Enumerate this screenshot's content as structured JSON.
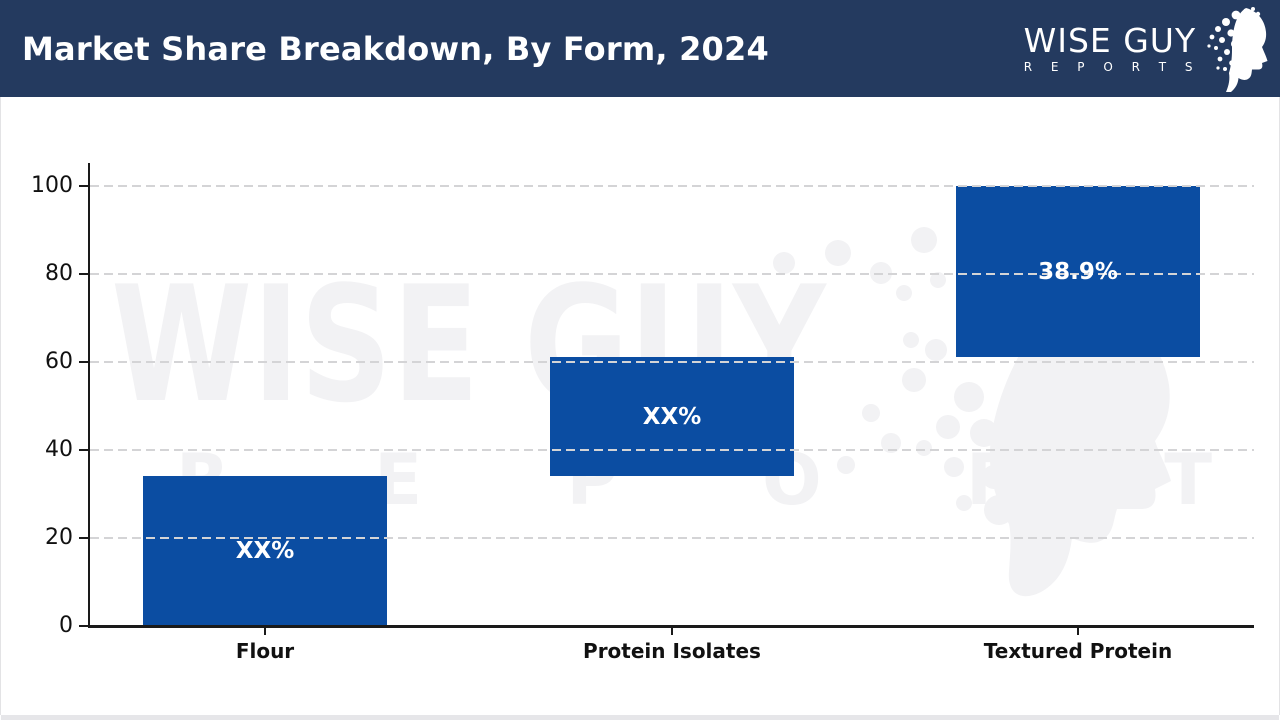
{
  "header": {
    "title": "Market Share Breakdown, By Form, 2024",
    "bg_color": "#243A5F",
    "logo": {
      "line1": "WISE GUY",
      "line2": "R E P O R T S"
    }
  },
  "watermark": {
    "line1": "WISE GUY",
    "line2": "R E P O R T S"
  },
  "chart_data": {
    "type": "bar",
    "subtype": "stacked-waterfall",
    "title": "Market Share Breakdown, By Form, 2024",
    "categories": [
      "Flour",
      "Protein Isolates",
      "Textured Protein"
    ],
    "segments": [
      {
        "category": "Flour",
        "start": 0,
        "end": 34.0,
        "value_shown": "XX%",
        "label": "XX%"
      },
      {
        "category": "Protein Isolates",
        "start": 34.0,
        "end": 61.1,
        "value_shown": "XX%",
        "label": "XX%"
      },
      {
        "category": "Textured Protein",
        "start": 61.1,
        "end": 100.0,
        "value_shown": "38.9%",
        "label": "38.9%"
      }
    ],
    "ylim": [
      0,
      100
    ],
    "yticks": [
      0,
      20,
      40,
      60,
      80,
      100
    ],
    "grid": "horizontal-dashed",
    "grid_color": "#d4d4d6",
    "bar_color": "#0B4DA2",
    "bar_label_color": "#ffffff",
    "axis_color": "#1a1a1a",
    "legend": "none"
  }
}
